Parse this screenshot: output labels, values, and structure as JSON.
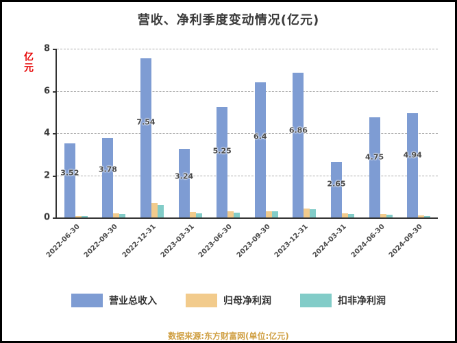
{
  "page": {
    "title": "营收、净利季度变动情况(亿元)",
    "y_unit_label": "亿元",
    "caption": "数据来源:东方财富网(单位:亿元)"
  },
  "chart_data": {
    "type": "bar",
    "title": "营收、净利季度变动情况(亿元)",
    "ylabel": "亿元",
    "xlabel": "",
    "ylim": [
      0,
      8
    ],
    "yticks": [
      0,
      2,
      4,
      6,
      8
    ],
    "grid": "horizontal-dashed",
    "legend_position": "bottom",
    "categories": [
      "2022-06-30",
      "2022-09-30",
      "2022-12-31",
      "2023-03-31",
      "2023-06-30",
      "2023-09-30",
      "2023-12-31",
      "2024-03-31",
      "2024-06-30",
      "2024-09-30"
    ],
    "series": [
      {
        "name": "营业总收入",
        "color": "#7e9cd3",
        "show_labels": true,
        "values": [
          3.52,
          3.78,
          7.54,
          3.24,
          5.25,
          6.4,
          6.86,
          2.65,
          4.75,
          4.94
        ]
      },
      {
        "name": "归母净利润",
        "color": "#f2cb8c",
        "show_labels": false,
        "values": [
          0.08,
          0.18,
          0.68,
          0.25,
          0.28,
          0.3,
          0.42,
          0.18,
          0.15,
          0.1
        ]
      },
      {
        "name": "扣非净利润",
        "color": "#82ccc8",
        "show_labels": false,
        "values": [
          0.05,
          0.15,
          0.6,
          0.2,
          0.22,
          0.28,
          0.4,
          0.15,
          0.12,
          0.06
        ]
      }
    ]
  }
}
